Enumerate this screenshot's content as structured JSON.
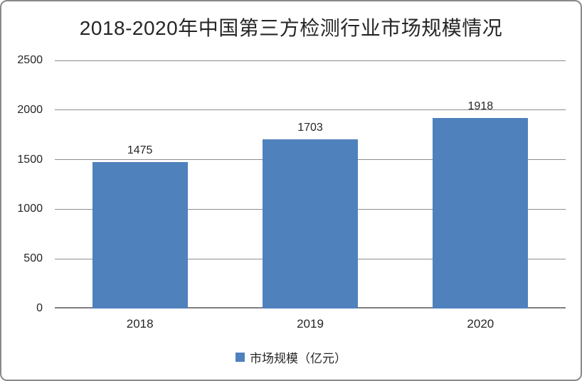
{
  "chart_data": {
    "type": "bar",
    "title": "2018-2020年中国第三方检测行业市场规模情况",
    "categories": [
      "2018",
      "2019",
      "2020"
    ],
    "values": [
      1475,
      1703,
      1918
    ],
    "legend": [
      "市场规模（亿元）"
    ],
    "legend_position": "bottom",
    "xlabel": "",
    "ylabel": "",
    "y_ticks": [
      0,
      500,
      1000,
      1500,
      2000,
      2500
    ],
    "ylim": [
      0,
      2500
    ],
    "grid": true,
    "colors": {
      "bar": "#4F81BD",
      "gridline": "#8C8C8C",
      "axis": "#7F7F7F",
      "text": "#262626",
      "frame_border": "#898989"
    }
  }
}
